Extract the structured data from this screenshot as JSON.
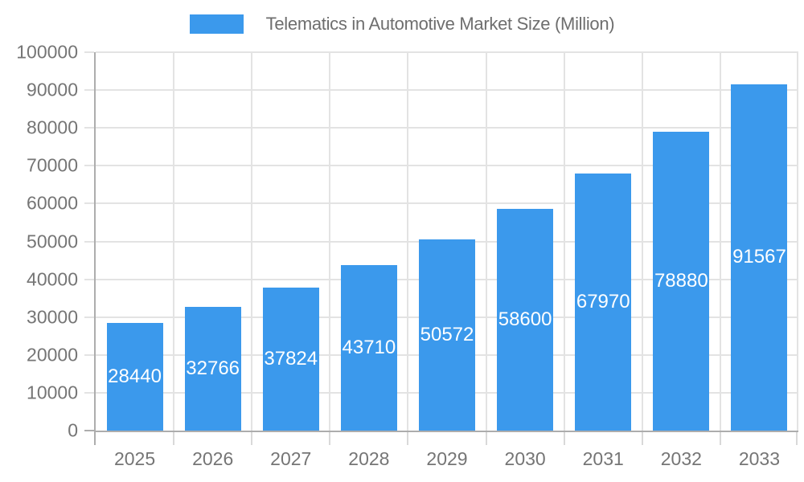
{
  "chart_data": {
    "type": "bar",
    "title": "Telematics in Automotive Market Size (Million)",
    "categories": [
      "2025",
      "2026",
      "2027",
      "2028",
      "2029",
      "2030",
      "2031",
      "2032",
      "2033"
    ],
    "values": [
      28440,
      32766,
      37824,
      43710,
      50572,
      58600,
      67970,
      78880,
      91567
    ],
    "series": [
      {
        "name": "Telematics in Automotive Market Size (Million)",
        "values": [
          28440,
          32766,
          37824,
          43710,
          50572,
          58600,
          67970,
          78880,
          91567
        ]
      }
    ],
    "xlabel": "",
    "ylabel": "",
    "ylim": [
      0,
      100000
    ],
    "ytick_step": 10000,
    "grid": true,
    "legend_position": "top",
    "value_labels": "inside-center"
  },
  "legend": {
    "label": "Telematics in Automotive Market Size (Million)"
  },
  "colors": {
    "bar": "#3B99EC",
    "grid": "#E3E3E3",
    "tick": "#D9D9D9",
    "axis": "#ADADAD",
    "axis_text": "#757575",
    "title_text": "#6E6E6E",
    "bar_label_text": "#FFFFFF",
    "background": "#FFFFFF"
  }
}
